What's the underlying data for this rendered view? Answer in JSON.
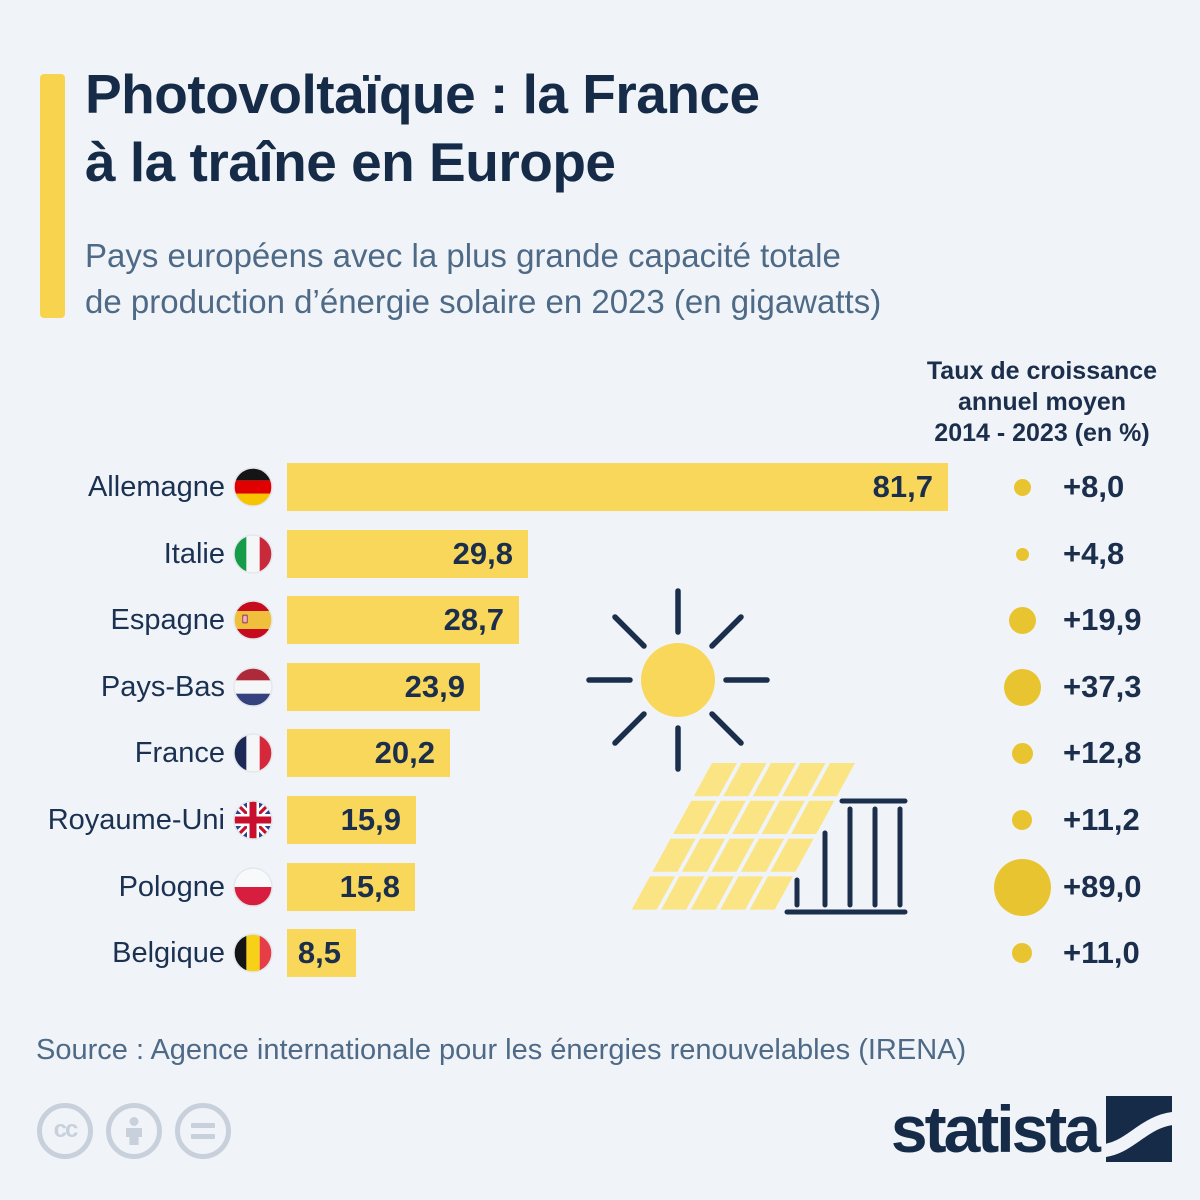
{
  "page": {
    "title": "Photovoltaïque : la France\nà la traîne en Europe",
    "subtitle": "Pays européens avec la plus grande capacité totale\nde production d’énergie solaire en 2023 (en gigawatts)",
    "growth_header": "Taux de croissance\nannuel moyen\n2014 - 2023 (en %)",
    "source": "Source : Agence internationale pour les énergies renouvelables (IRENA)",
    "brand": "statista",
    "license_icons": [
      "cc-icon",
      "attribution-person-icon",
      "equals-icon"
    ],
    "colors": {
      "background": "#F0F4F8",
      "navy": "#1B2E4C",
      "muted_blue": "#4E6A87",
      "bar_yellow": "#F8D75A",
      "dot_yellow": "#E9C431",
      "panel_yellow": "#FBE483",
      "accent_yellow": "#F8D44E",
      "icon_gray": "#C7D0DB"
    }
  },
  "rows": [
    {
      "country": "Allemagne",
      "flag": "de",
      "value": 81.7,
      "value_label": "81,7",
      "growth": 8.0,
      "growth_label": "+8,0"
    },
    {
      "country": "Italie",
      "flag": "it",
      "value": 29.8,
      "value_label": "29,8",
      "growth": 4.8,
      "growth_label": "+4,8"
    },
    {
      "country": "Espagne",
      "flag": "es",
      "value": 28.7,
      "value_label": "28,7",
      "growth": 19.9,
      "growth_label": "+19,9"
    },
    {
      "country": "Pays-Bas",
      "flag": "nl",
      "value": 23.9,
      "value_label": "23,9",
      "growth": 37.3,
      "growth_label": "+37,3"
    },
    {
      "country": "France",
      "flag": "fr",
      "value": 20.2,
      "value_label": "20,2",
      "growth": 12.8,
      "growth_label": "+12,8"
    },
    {
      "country": "Royaume-Uni",
      "flag": "gb",
      "value": 15.9,
      "value_label": "15,9",
      "growth": 11.2,
      "growth_label": "+11,2"
    },
    {
      "country": "Pologne",
      "flag": "pl",
      "value": 15.8,
      "value_label": "15,8",
      "growth": 89.0,
      "growth_label": "+89,0"
    },
    {
      "country": "Belgique",
      "flag": "be",
      "value": 8.5,
      "value_label": "8,5",
      "growth": 11.0,
      "growth_label": "+11,0"
    }
  ],
  "chart_data": {
    "type": "bar",
    "orientation": "horizontal",
    "title": "Photovoltaïque : la France à la traîne en Europe",
    "subtitle": "Pays européens avec la plus grande capacité totale de production d’énergie solaire en 2023 (en gigawatts)",
    "categories": [
      "Allemagne",
      "Italie",
      "Espagne",
      "Pays-Bas",
      "France",
      "Royaume-Uni",
      "Pologne",
      "Belgique"
    ],
    "series": [
      {
        "name": "Capacité solaire totale 2023 (GW)",
        "values": [
          81.7,
          29.8,
          28.7,
          23.9,
          20.2,
          15.9,
          15.8,
          8.5
        ]
      },
      {
        "name": "Taux de croissance annuel moyen 2014-2023 (%)",
        "values": [
          8.0,
          4.8,
          19.9,
          37.3,
          12.8,
          11.2,
          89.0,
          11.0
        ]
      }
    ],
    "xlim": [
      0,
      85
    ],
    "grid": false,
    "legend_position": "none",
    "value_labels_decimal_separator": ",",
    "source": "Agence internationale pour les énergies renouvelables (IRENA)"
  }
}
